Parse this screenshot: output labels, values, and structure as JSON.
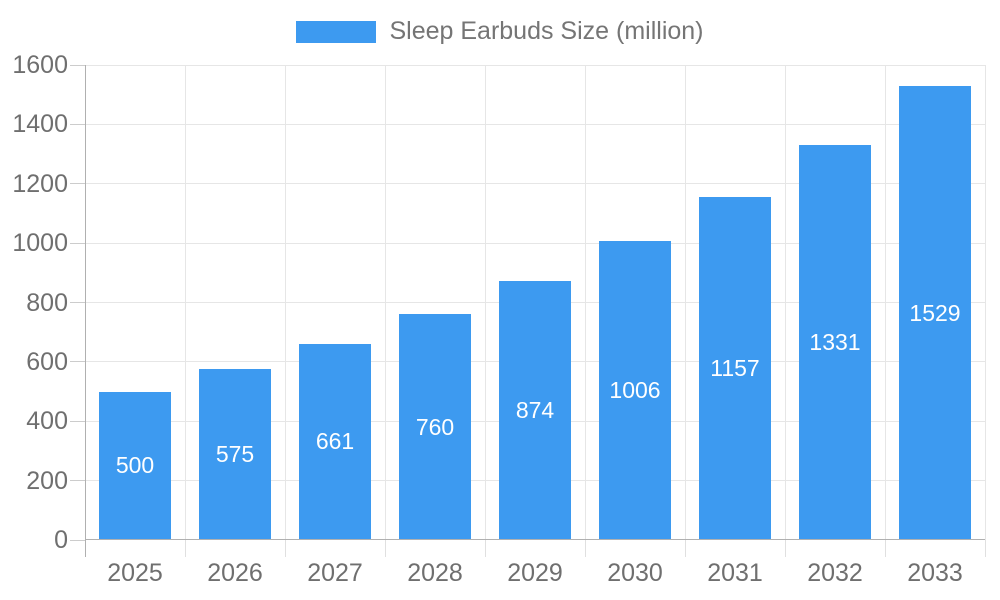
{
  "colors": {
    "background": "#ffffff",
    "bar": "#3d9af0",
    "bar_label": "#ffffff",
    "grid": "#e6e6e6",
    "axis": "#b0b0b0",
    "minor_tick": "#e0e0e0",
    "y_tick": "#cccccc",
    "axis_label": "#6f6f6f",
    "legend_text": "#757575"
  },
  "chart_data": {
    "type": "bar",
    "title": "",
    "legend_position": "top-center",
    "categories": [
      "2025",
      "2026",
      "2027",
      "2028",
      "2029",
      "2030",
      "2031",
      "2032",
      "2033"
    ],
    "series": [
      {
        "name": "Sleep Earbuds Size (million)",
        "color": "#3d9af0",
        "values": [
          500,
          575,
          661,
          760,
          874,
          1006,
          1157,
          1331,
          1529
        ]
      }
    ],
    "xlabel": "",
    "ylabel": "",
    "ylim": [
      0,
      1600
    ],
    "yticks": [
      0,
      200,
      400,
      600,
      800,
      1000,
      1200,
      1400,
      1600
    ],
    "grid": true,
    "value_labels": "inside-middle"
  }
}
